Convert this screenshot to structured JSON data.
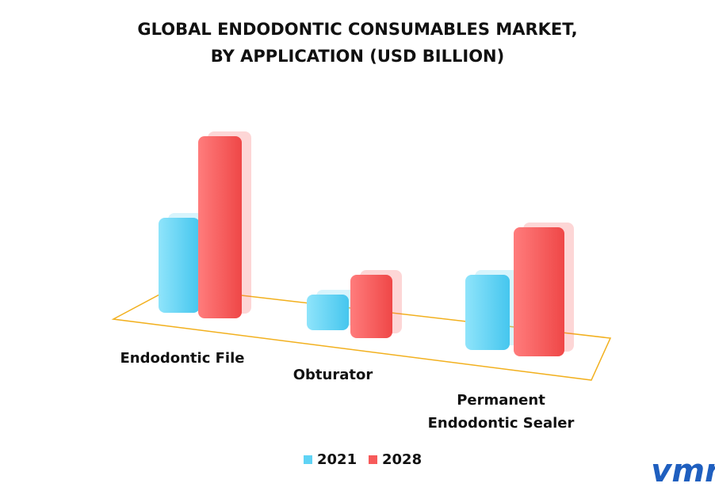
{
  "chart_data": {
    "type": "bar3d",
    "title": "GLOBAL ENDODONTIC CONSUMABLES MARKET,",
    "subtitle": "BY APPLICATION (USD BILLION)",
    "categories": [
      "Endodontic File",
      "Obturator",
      "Permanent Endodontic Sealer"
    ],
    "series": [
      {
        "name": "2021",
        "color": "#5fd3f5",
        "values": [
          1.2,
          0.45,
          0.95
        ]
      },
      {
        "name": "2028",
        "color": "#f75a5a",
        "values": [
          2.3,
          0.8,
          1.63
        ]
      }
    ]
  },
  "logo": "vmr"
}
